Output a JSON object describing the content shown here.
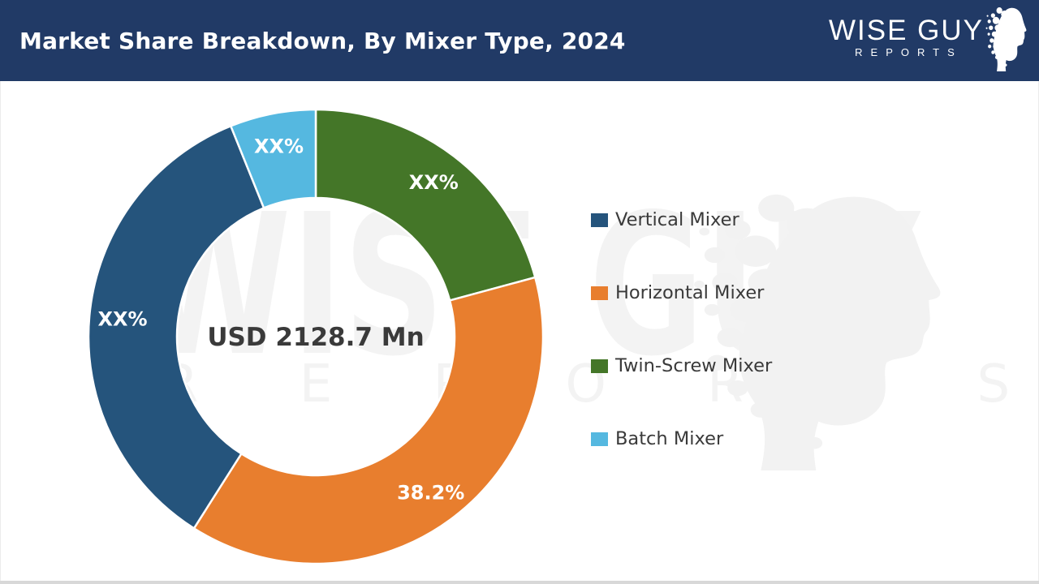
{
  "header": {
    "title": "Market Share Breakdown, By Mixer Type, 2024",
    "logo": {
      "line1": "WISE GUY",
      "line2": "REPORTS",
      "face_icon": "dotted-head-profile"
    }
  },
  "watermark": {
    "line1": "WISE GUY",
    "line2": "R E P O R T S",
    "face_icon": "dotted-head-profile",
    "color": "#f3f3f3"
  },
  "chart_data": {
    "type": "pie",
    "subtype": "donut",
    "title": "Market Share Breakdown, By Mixer Type, 2024",
    "center_label": "USD 2128.7 Mn",
    "start_angle_deg_from_north": 0,
    "direction": "clockwise",
    "inner_to_outer_ratio": 0.61,
    "segments": [
      {
        "name": "Twin-Screw Mixer",
        "display_label": "XX%",
        "value_pct": 20.8,
        "color": "#447628"
      },
      {
        "name": "Horizontal Mixer",
        "display_label": "38.2%",
        "value_pct": 38.2,
        "color": "#E87E2E"
      },
      {
        "name": "Vertical Mixer",
        "display_label": "XX%",
        "value_pct": 34.9,
        "color": "#25547C"
      },
      {
        "name": "Batch Mixer",
        "display_label": "XX%",
        "value_pct": 6.1,
        "color": "#55B8E0"
      }
    ],
    "legend": {
      "position": "right",
      "items": [
        {
          "label": "Vertical Mixer",
          "color": "#25547C"
        },
        {
          "label": "Horizontal Mixer",
          "color": "#E87E2E"
        },
        {
          "label": "Twin-Screw Mixer",
          "color": "#447628"
        },
        {
          "label": "Batch Mixer",
          "color": "#55B8E0"
        }
      ]
    }
  },
  "colors": {
    "header_bg": "#213A66",
    "header_text": "#ffffff",
    "wedge_label_text": "#ffffff",
    "center_label_text": "#3A3A3A",
    "legend_text": "#3A3A3A",
    "wedge_gap_stroke": "#ffffff",
    "bottom_edge_line": "#d8d8d8"
  }
}
